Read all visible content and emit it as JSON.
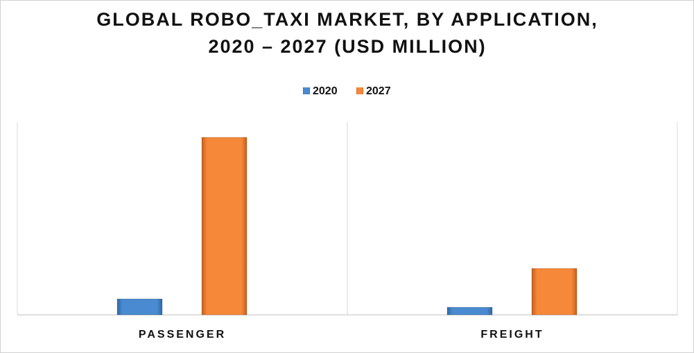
{
  "chart_data": {
    "type": "bar",
    "title": "GLOBAL ROBO_TAXI MARKET, BY APPLICATION, 2020 – 2027 (USD MILLION)",
    "categories": [
      "PASSENGER",
      "FREIGHT"
    ],
    "series": [
      {
        "name": "2020",
        "color": "#4a8ad0",
        "values": [
          23,
          11
        ]
      },
      {
        "name": "2027",
        "color": "#f6883a",
        "values": [
          256,
          67
        ]
      }
    ],
    "ylim": [
      0,
      278
    ],
    "legend": "top"
  }
}
